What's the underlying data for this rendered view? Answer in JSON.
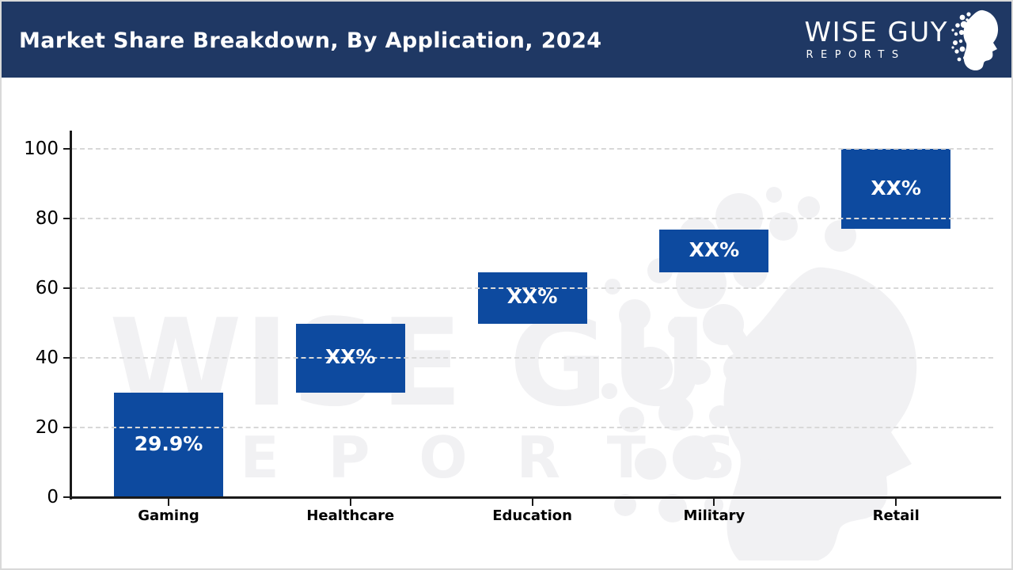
{
  "header": {
    "title": "Market Share Breakdown, By Application, 2024",
    "bg_color": "#1f3864",
    "logo": {
      "line1": "WISE GUY",
      "line2": "REPORTS"
    }
  },
  "watermark": {
    "line1": "WISE GUY",
    "line2": "REPORTS"
  },
  "chart_data": {
    "type": "bar",
    "subtype": "waterfall",
    "title": "Market Share Breakdown, By Application, 2024",
    "categories": [
      "Gaming",
      "Healthcare",
      "Education",
      "Military",
      "Retail"
    ],
    "series": [
      {
        "name": "Market Share (%)",
        "segments": [
          {
            "category": "Gaming",
            "start": 0,
            "end": 29.9,
            "label": "29.9%"
          },
          {
            "category": "Healthcare",
            "start": 29.9,
            "end": 49.8,
            "label": "XX%"
          },
          {
            "category": "Education",
            "start": 49.8,
            "end": 64.6,
            "label": "XX%"
          },
          {
            "category": "Military",
            "start": 64.6,
            "end": 76.9,
            "label": "XX%"
          },
          {
            "category": "Retail",
            "start": 77.0,
            "end": 100,
            "label": "XX%"
          }
        ]
      }
    ],
    "xlabel": "",
    "ylabel": "",
    "ylim": [
      0,
      100
    ],
    "yticks": [
      0,
      20,
      40,
      60,
      80,
      100
    ],
    "grid": "horizontal-dashed",
    "legend": "none",
    "bar_color": "#0d4a9f",
    "bar_label_color": "#ffffff",
    "axis_color": "#1a1a1a",
    "grid_color": "#d8d8d8"
  }
}
